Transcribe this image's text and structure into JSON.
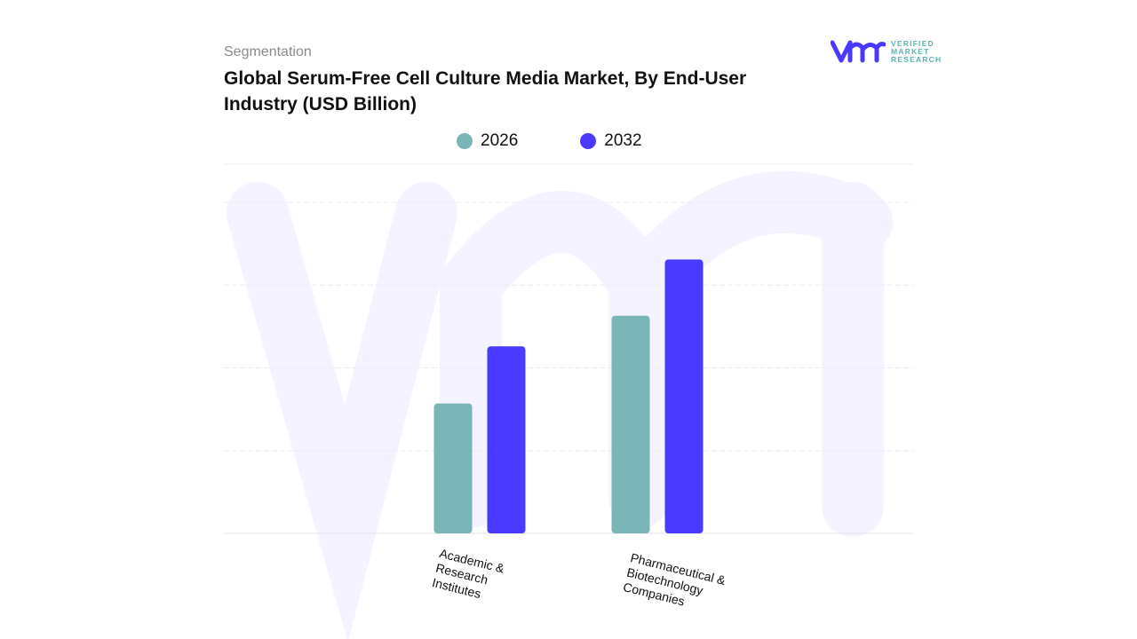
{
  "header": {
    "segment": "Segmentation",
    "title": "Global Serum-Free Cell Culture Media Market, By End-User Industry (USD Billion)"
  },
  "logo": {
    "text": "VERIFIED MARKET RESEARCH",
    "line1": "VERIFIED",
    "line2": "MARKET",
    "line3": "RESEARCH"
  },
  "chart_data": {
    "type": "bar",
    "title": "Global Serum-Free Cell Culture Media Market, By End-User Industry (USD Billion)",
    "categories": [
      "Academic & Research Institutes",
      "Pharmaceutical & Biotechnology Companies"
    ],
    "series": [
      {
        "name": "2026",
        "color": "#7ab5b8",
        "values": [
          1.57,
          2.63
        ]
      },
      {
        "name": "2032",
        "color": "#4a3aff",
        "values": [
          2.26,
          3.31
        ]
      }
    ],
    "ylim": [
      0,
      4
    ],
    "grid": true,
    "legend": "top-center",
    "xlabel": "",
    "ylabel": ""
  }
}
